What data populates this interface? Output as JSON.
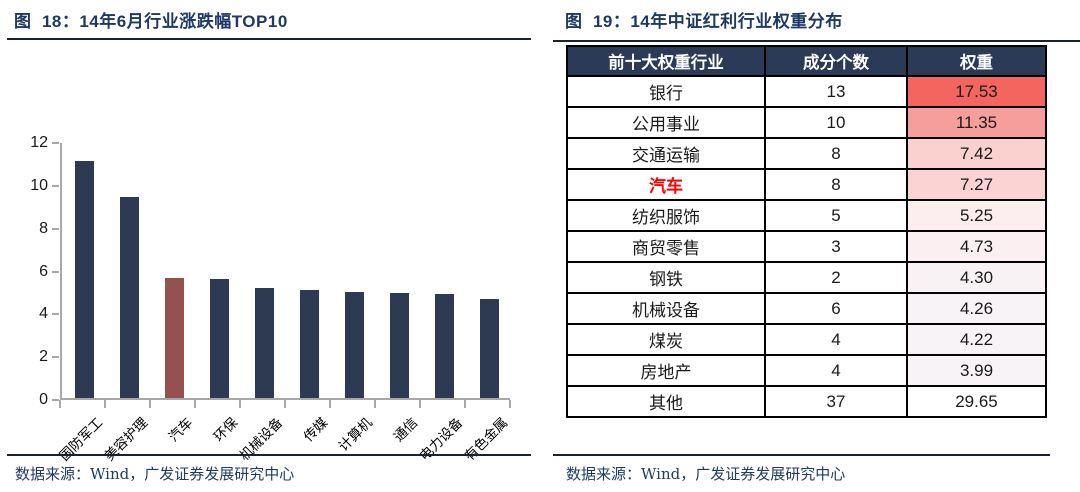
{
  "figure18": {
    "title": "图  18：14年6月行业涨跌幅TOP10",
    "source": "数据来源：Wind，广发证券发展研究中心"
  },
  "figure19": {
    "title": "图  19：14年中证红利行业权重分布",
    "source": "数据来源：Wind，广发证券发展研究中心"
  },
  "chart_data": [
    {
      "type": "bar",
      "title": "14年6月行业涨跌幅TOP10",
      "categories": [
        "国防军工",
        "美容护理",
        "汽车",
        "环保",
        "机械设备",
        "传媒",
        "计算机",
        "通信",
        "电力设备",
        "有色金属"
      ],
      "values": [
        11.05,
        9.4,
        5.6,
        5.55,
        5.15,
        5.05,
        4.95,
        4.9,
        4.85,
        4.6
      ],
      "highlight_index": 2,
      "bar_color": "#2d3a52",
      "highlight_color": "#95514f",
      "xlabel": "",
      "ylabel": "",
      "ylim": [
        0,
        12
      ],
      "yticks": [
        0,
        2,
        4,
        6,
        8,
        10,
        12
      ],
      "grid": false,
      "legend_position": "none"
    },
    {
      "type": "table",
      "title": "14年中证红利行业权重分布",
      "headers": [
        "前十大权重行业",
        "成分个数",
        "权重"
      ],
      "header_bg": "#2b3a56",
      "header_text_color": "#ffffff",
      "highlight_text_color": "#fe0000",
      "rows": [
        {
          "industry": "银行",
          "count": "13",
          "weight": "17.53",
          "weight_bg": "#f4655f",
          "highlight": false
        },
        {
          "industry": "公用事业",
          "count": "10",
          "weight": "11.35",
          "weight_bg": "#f69e9b",
          "highlight": false
        },
        {
          "industry": "交通运输",
          "count": "8",
          "weight": "7.42",
          "weight_bg": "#fbd1d0",
          "highlight": false
        },
        {
          "industry": "汽车",
          "count": "8",
          "weight": "7.27",
          "weight_bg": "#fbd3d2",
          "highlight": true
        },
        {
          "industry": "纺织服饰",
          "count": "5",
          "weight": "5.25",
          "weight_bg": "#fcedee",
          "highlight": false
        },
        {
          "industry": "商贸零售",
          "count": "3",
          "weight": "4.73",
          "weight_bg": "#faf0f2",
          "highlight": false
        },
        {
          "industry": "钢铁",
          "count": "2",
          "weight": "4.30",
          "weight_bg": "#f9f2f5",
          "highlight": false
        },
        {
          "industry": "机械设备",
          "count": "6",
          "weight": "4.26",
          "weight_bg": "#f8f3f6",
          "highlight": false
        },
        {
          "industry": "煤炭",
          "count": "4",
          "weight": "4.22",
          "weight_bg": "#f8f3f6",
          "highlight": false
        },
        {
          "industry": "房地产",
          "count": "4",
          "weight": "3.99",
          "weight_bg": "#f7f3f7",
          "highlight": false
        },
        {
          "industry": "其他",
          "count": "37",
          "weight": "29.65",
          "weight_bg": "#ffffff",
          "highlight": false
        }
      ]
    }
  ]
}
